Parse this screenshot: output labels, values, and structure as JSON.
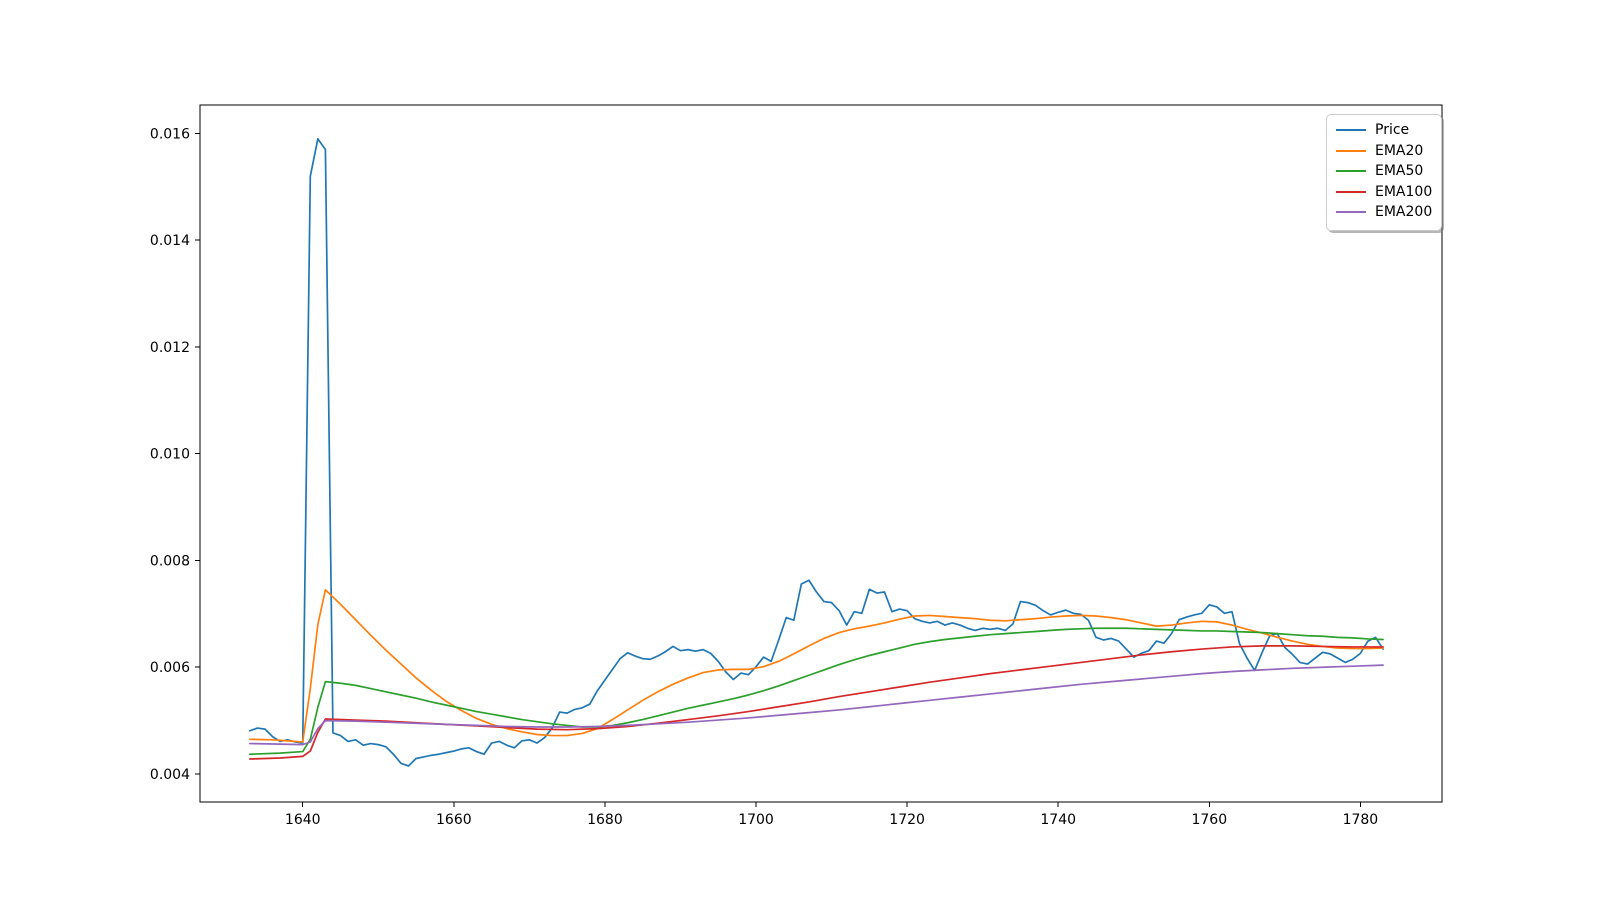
{
  "figure": {
    "background": "#ffffff",
    "spine_color": "#000000",
    "tick_color": "#000000"
  },
  "chart_data": {
    "type": "line",
    "title": "",
    "xlabel": "",
    "ylabel": "",
    "grid": false,
    "xlim": [
      1626.4,
      1790.8
    ],
    "ylim": [
      0.003475,
      0.016534
    ],
    "x_ticks": [
      1640,
      1660,
      1680,
      1700,
      1720,
      1740,
      1760,
      1780
    ],
    "x_tick_labels": [
      "1640",
      "1660",
      "1680",
      "1700",
      "1720",
      "1740",
      "1760",
      "1780"
    ],
    "y_ticks": [
      0.004,
      0.006,
      0.008,
      0.01,
      0.012,
      0.014,
      0.016
    ],
    "y_tick_labels": [
      "0.004",
      "0.006",
      "0.008",
      "0.010",
      "0.012",
      "0.014",
      "0.016"
    ],
    "legend": {
      "position": "upper right",
      "entries": [
        "Price",
        "EMA20",
        "EMA50",
        "EMA100",
        "EMA200"
      ]
    },
    "y_unit": 0.0001,
    "series": [
      {
        "name": "Price",
        "color": "#1f77b4",
        "x_start": 1633,
        "x_step": 1,
        "y": [
          48.1,
          48.6,
          48.4,
          47.0,
          46.1,
          46.4,
          46.0,
          45.8,
          152.0,
          159.0,
          157.0,
          47.7,
          47.2,
          46.1,
          46.4,
          45.4,
          45.7,
          45.5,
          45.1,
          43.7,
          42.0,
          41.5,
          42.9,
          43.2,
          43.5,
          43.7,
          44.0,
          44.3,
          44.7,
          44.9,
          44.2,
          43.7,
          45.8,
          46.1,
          45.4,
          44.9,
          46.2,
          46.4,
          45.8,
          46.8,
          48.6,
          51.6,
          51.4,
          52.1,
          52.4,
          53.1,
          55.6,
          57.6,
          59.6,
          61.6,
          62.7,
          62.1,
          61.6,
          61.5,
          62.1,
          62.9,
          63.9,
          63.1,
          63.3,
          63.0,
          63.3,
          62.6,
          61.1,
          59.1,
          57.7,
          58.9,
          58.6,
          60.1,
          61.9,
          61.1,
          65.1,
          69.3,
          68.8,
          75.6,
          76.3,
          74.1,
          72.3,
          72.1,
          70.6,
          67.9,
          70.4,
          70.1,
          74.6,
          73.9,
          74.1,
          70.4,
          70.9,
          70.6,
          69.1,
          68.6,
          68.3,
          68.6,
          67.9,
          68.3,
          67.9,
          67.3,
          66.9,
          67.3,
          67.1,
          67.3,
          66.9,
          68.1,
          72.3,
          72.1,
          71.6,
          70.6,
          69.8,
          70.3,
          70.7,
          70.1,
          69.9,
          68.8,
          65.6,
          65.1,
          65.4,
          64.9,
          63.4,
          61.9,
          62.6,
          63.1,
          64.9,
          64.5,
          66.3,
          68.9,
          69.4,
          69.8,
          70.1,
          71.7,
          71.3,
          70.1,
          70.4,
          64.4,
          61.7,
          59.4,
          62.8,
          65.9,
          66.3,
          63.7,
          62.4,
          60.9,
          60.6,
          61.7,
          62.8,
          62.5,
          61.7,
          60.9,
          61.5,
          62.6,
          64.9,
          65.6,
          63.4
        ]
      },
      {
        "name": "EMA20",
        "color": "#ff7f0e",
        "x": [
          1633,
          1636,
          1638,
          1640,
          1641,
          1642,
          1643,
          1645,
          1647,
          1649,
          1651,
          1653,
          1655,
          1657,
          1659,
          1661,
          1663,
          1665,
          1667,
          1669,
          1671,
          1673,
          1675,
          1677,
          1679,
          1681,
          1683,
          1685,
          1687,
          1689,
          1691,
          1693,
          1695,
          1697,
          1699,
          1701,
          1703,
          1705,
          1707,
          1709,
          1711,
          1713,
          1715,
          1717,
          1719,
          1721,
          1723,
          1725,
          1727,
          1729,
          1731,
          1733,
          1735,
          1737,
          1739,
          1741,
          1743,
          1745,
          1747,
          1749,
          1751,
          1753,
          1755,
          1757,
          1759,
          1761,
          1763,
          1765,
          1767,
          1769,
          1771,
          1773,
          1775,
          1777,
          1779,
          1781,
          1783
        ],
        "y": [
          46.5,
          46.4,
          46.2,
          46.0,
          56.0,
          68.0,
          74.5,
          71.8,
          68.9,
          66.0,
          63.2,
          60.6,
          58.0,
          55.7,
          53.6,
          51.9,
          50.4,
          49.3,
          48.5,
          47.9,
          47.4,
          47.2,
          47.2,
          47.6,
          48.5,
          50.2,
          52.0,
          53.8,
          55.4,
          56.8,
          58.0,
          59.0,
          59.5,
          59.6,
          59.6,
          60.1,
          61.1,
          62.5,
          64.0,
          65.4,
          66.5,
          67.2,
          67.7,
          68.3,
          69.0,
          69.6,
          69.7,
          69.5,
          69.3,
          69.1,
          68.8,
          68.7,
          68.9,
          69.1,
          69.4,
          69.6,
          69.7,
          69.6,
          69.3,
          68.9,
          68.3,
          67.7,
          67.9,
          68.3,
          68.6,
          68.5,
          67.9,
          67.1,
          66.4,
          65.6,
          64.9,
          64.3,
          63.9,
          63.6,
          63.5,
          63.5,
          63.6
        ]
      },
      {
        "name": "EMA50",
        "color": "#2ca02c",
        "x": [
          1633,
          1637,
          1640,
          1641,
          1642,
          1643,
          1645,
          1647,
          1649,
          1651,
          1653,
          1655,
          1657,
          1659,
          1661,
          1663,
          1665,
          1667,
          1669,
          1671,
          1673,
          1675,
          1677,
          1679,
          1681,
          1683,
          1685,
          1687,
          1689,
          1691,
          1693,
          1695,
          1697,
          1699,
          1701,
          1703,
          1705,
          1707,
          1709,
          1711,
          1713,
          1715,
          1717,
          1719,
          1721,
          1723,
          1725,
          1727,
          1729,
          1731,
          1733,
          1735,
          1737,
          1739,
          1741,
          1743,
          1745,
          1747,
          1749,
          1751,
          1753,
          1755,
          1757,
          1759,
          1761,
          1763,
          1765,
          1767,
          1769,
          1771,
          1773,
          1775,
          1777,
          1779,
          1781,
          1783
        ],
        "y": [
          43.7,
          43.9,
          44.2,
          46.5,
          52.5,
          57.3,
          57.0,
          56.6,
          56.0,
          55.4,
          54.8,
          54.2,
          53.5,
          52.9,
          52.3,
          51.7,
          51.2,
          50.7,
          50.2,
          49.8,
          49.4,
          49.1,
          48.8,
          48.8,
          49.1,
          49.6,
          50.2,
          50.9,
          51.6,
          52.3,
          52.9,
          53.5,
          54.1,
          54.8,
          55.6,
          56.5,
          57.5,
          58.5,
          59.5,
          60.5,
          61.4,
          62.2,
          62.9,
          63.6,
          64.3,
          64.8,
          65.2,
          65.5,
          65.8,
          66.1,
          66.3,
          66.5,
          66.7,
          66.9,
          67.1,
          67.2,
          67.3,
          67.3,
          67.3,
          67.2,
          67.1,
          67.0,
          66.9,
          66.8,
          66.8,
          66.7,
          66.6,
          66.5,
          66.3,
          66.1,
          65.9,
          65.8,
          65.6,
          65.5,
          65.3,
          65.2
        ]
      },
      {
        "name": "EMA100",
        "color": "#d62728",
        "x": [
          1633,
          1637,
          1640,
          1641,
          1642,
          1643,
          1647,
          1651,
          1655,
          1659,
          1663,
          1667,
          1671,
          1675,
          1679,
          1683,
          1687,
          1691,
          1695,
          1699,
          1703,
          1707,
          1711,
          1715,
          1719,
          1723,
          1727,
          1731,
          1735,
          1739,
          1743,
          1747,
          1751,
          1755,
          1759,
          1763,
          1767,
          1771,
          1775,
          1779,
          1783
        ],
        "y": [
          42.8,
          43.0,
          43.3,
          44.3,
          47.8,
          50.3,
          50.1,
          49.9,
          49.6,
          49.3,
          49.0,
          48.7,
          48.4,
          48.3,
          48.5,
          48.9,
          49.5,
          50.2,
          50.9,
          51.7,
          52.6,
          53.5,
          54.5,
          55.4,
          56.3,
          57.2,
          58.0,
          58.8,
          59.5,
          60.2,
          60.9,
          61.6,
          62.3,
          62.9,
          63.4,
          63.8,
          64.0,
          64.0,
          63.9,
          63.8,
          63.8
        ]
      },
      {
        "name": "EMA200",
        "color": "#9467bd",
        "x": [
          1633,
          1637,
          1640,
          1641,
          1642,
          1643,
          1647,
          1651,
          1655,
          1659,
          1663,
          1667,
          1671,
          1675,
          1679,
          1683,
          1687,
          1691,
          1695,
          1699,
          1703,
          1707,
          1711,
          1715,
          1719,
          1723,
          1727,
          1731,
          1735,
          1739,
          1743,
          1747,
          1751,
          1755,
          1759,
          1763,
          1767,
          1771,
          1775,
          1779,
          1783
        ],
        "y": [
          45.7,
          45.6,
          45.5,
          46.0,
          48.5,
          50.0,
          49.9,
          49.7,
          49.5,
          49.3,
          49.1,
          48.9,
          48.8,
          48.8,
          48.9,
          49.1,
          49.4,
          49.7,
          50.1,
          50.5,
          51.0,
          51.5,
          52.0,
          52.6,
          53.2,
          53.8,
          54.4,
          55.0,
          55.6,
          56.2,
          56.8,
          57.3,
          57.8,
          58.3,
          58.8,
          59.2,
          59.5,
          59.8,
          60.0,
          60.2,
          60.4
        ]
      }
    ]
  }
}
